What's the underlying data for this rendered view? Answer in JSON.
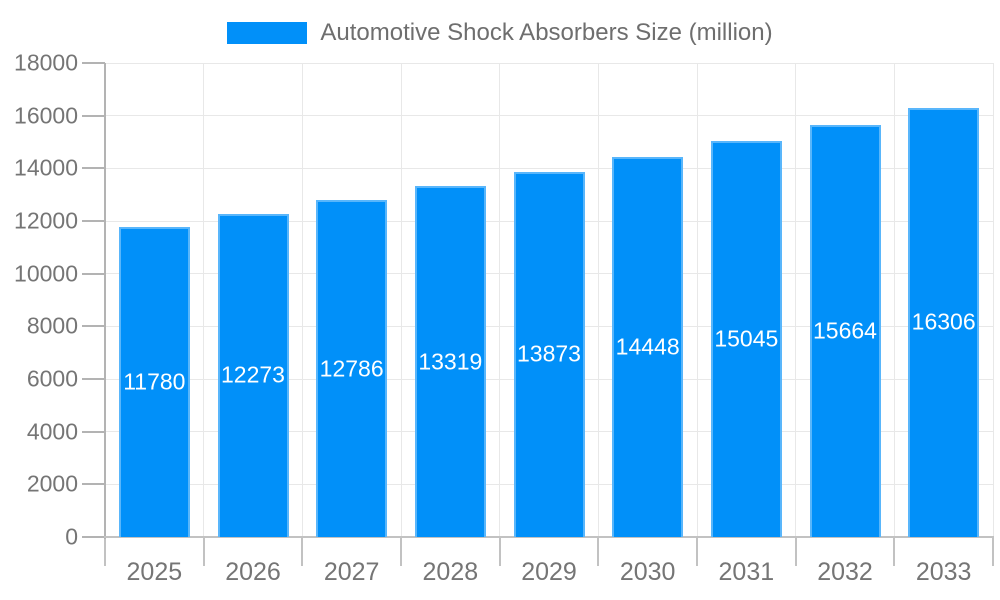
{
  "chart_data": {
    "type": "bar",
    "title": "Automotive Shock Absorbers Size (million)",
    "legend": [
      "Automotive Shock Absorbers Size (million)"
    ],
    "legend_position": "top",
    "categories": [
      "2025",
      "2026",
      "2027",
      "2028",
      "2029",
      "2030",
      "2031",
      "2032",
      "2033"
    ],
    "series": [
      {
        "name": "Automotive Shock Absorbers Size (million)",
        "values": [
          11780,
          12273,
          12786,
          13319,
          13873,
          14448,
          15045,
          15664,
          16306
        ]
      }
    ],
    "value_labels_shown": true,
    "xlabel": "",
    "ylabel": "",
    "ylim": [
      0,
      18000
    ],
    "ytick_step": 2000,
    "ytick_labels": [
      "0",
      "2000",
      "4000",
      "6000",
      "8000",
      "10000",
      "12000",
      "14000",
      "16000",
      "18000"
    ],
    "grid": "on",
    "colors": {
      "bar_fill": "#0190F9",
      "bar_edge_highlight": "rgba(255,255,255,0.35)",
      "value_label": "#FFFFFF",
      "axis_text": "#757575",
      "legend_text": "#6E6E6E",
      "gridline": "#E8E8E8",
      "axis_line": "#B3B3B3",
      "x_axis_line": "#C2C2C2",
      "background": "#FFFFFF"
    }
  }
}
